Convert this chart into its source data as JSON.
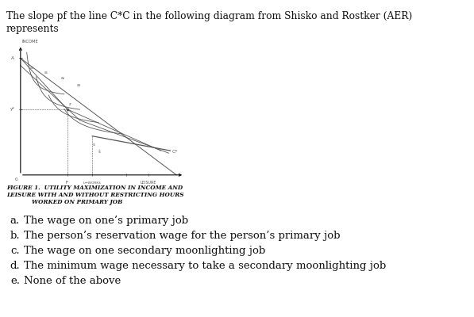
{
  "title_line1": "The slope pf the line C*C in the following diagram from Shisko and Rostker (AER)",
  "title_line2": "represents",
  "figure_caption_line1": "FIGURE 1.  UTILITY MAXIMIZATION IN INCOME AND",
  "figure_caption_line2": "LEISURE WITH AND WITHOUT RESTRICTING HOURS",
  "figure_caption_line3": "WORKED ON PRIMARY JOB",
  "option_labels": [
    "a.",
    "b.",
    "c.",
    "d.",
    "e."
  ],
  "option_texts": [
    "The wage on one’s primary job",
    "The person’s reservation wage for the person’s primary job",
    "The wage on one secondary moonlighting job",
    "The minimum wage necessary to take a secondary moonlighting job",
    "None of the above"
  ],
  "background_color": "#ffffff",
  "text_color": "#111111",
  "diagram_color": "#555555"
}
